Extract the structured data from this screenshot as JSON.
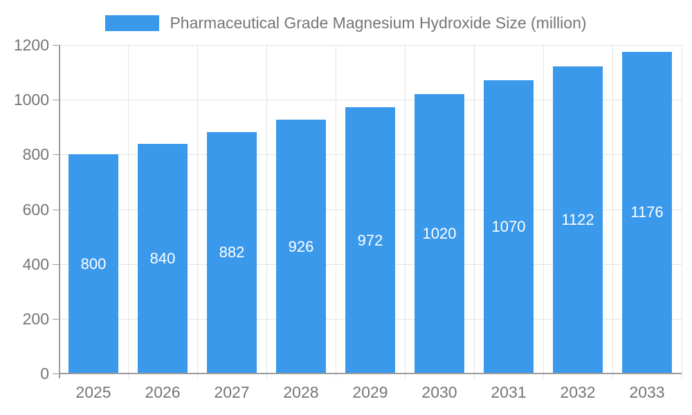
{
  "chart_data": {
    "type": "bar",
    "title": "Pharmaceutical Grade Magnesium Hydroxide Size (million)",
    "categories": [
      "2025",
      "2026",
      "2027",
      "2028",
      "2029",
      "2030",
      "2031",
      "2032",
      "2033"
    ],
    "values": [
      800,
      840,
      882,
      926,
      972,
      1020,
      1070,
      1122,
      1176
    ],
    "ylim": [
      0,
      1200
    ],
    "yticks": [
      0,
      200,
      400,
      600,
      800,
      1000,
      1200
    ],
    "xlabel": "",
    "ylabel": "",
    "grid": true,
    "legend_position": "top",
    "bar_color": "#3b99ec",
    "bar_label_color": "#ffffff",
    "axis_color": "#9a9a9a",
    "grid_color": "#e2e2e2",
    "text_color": "#757575"
  }
}
